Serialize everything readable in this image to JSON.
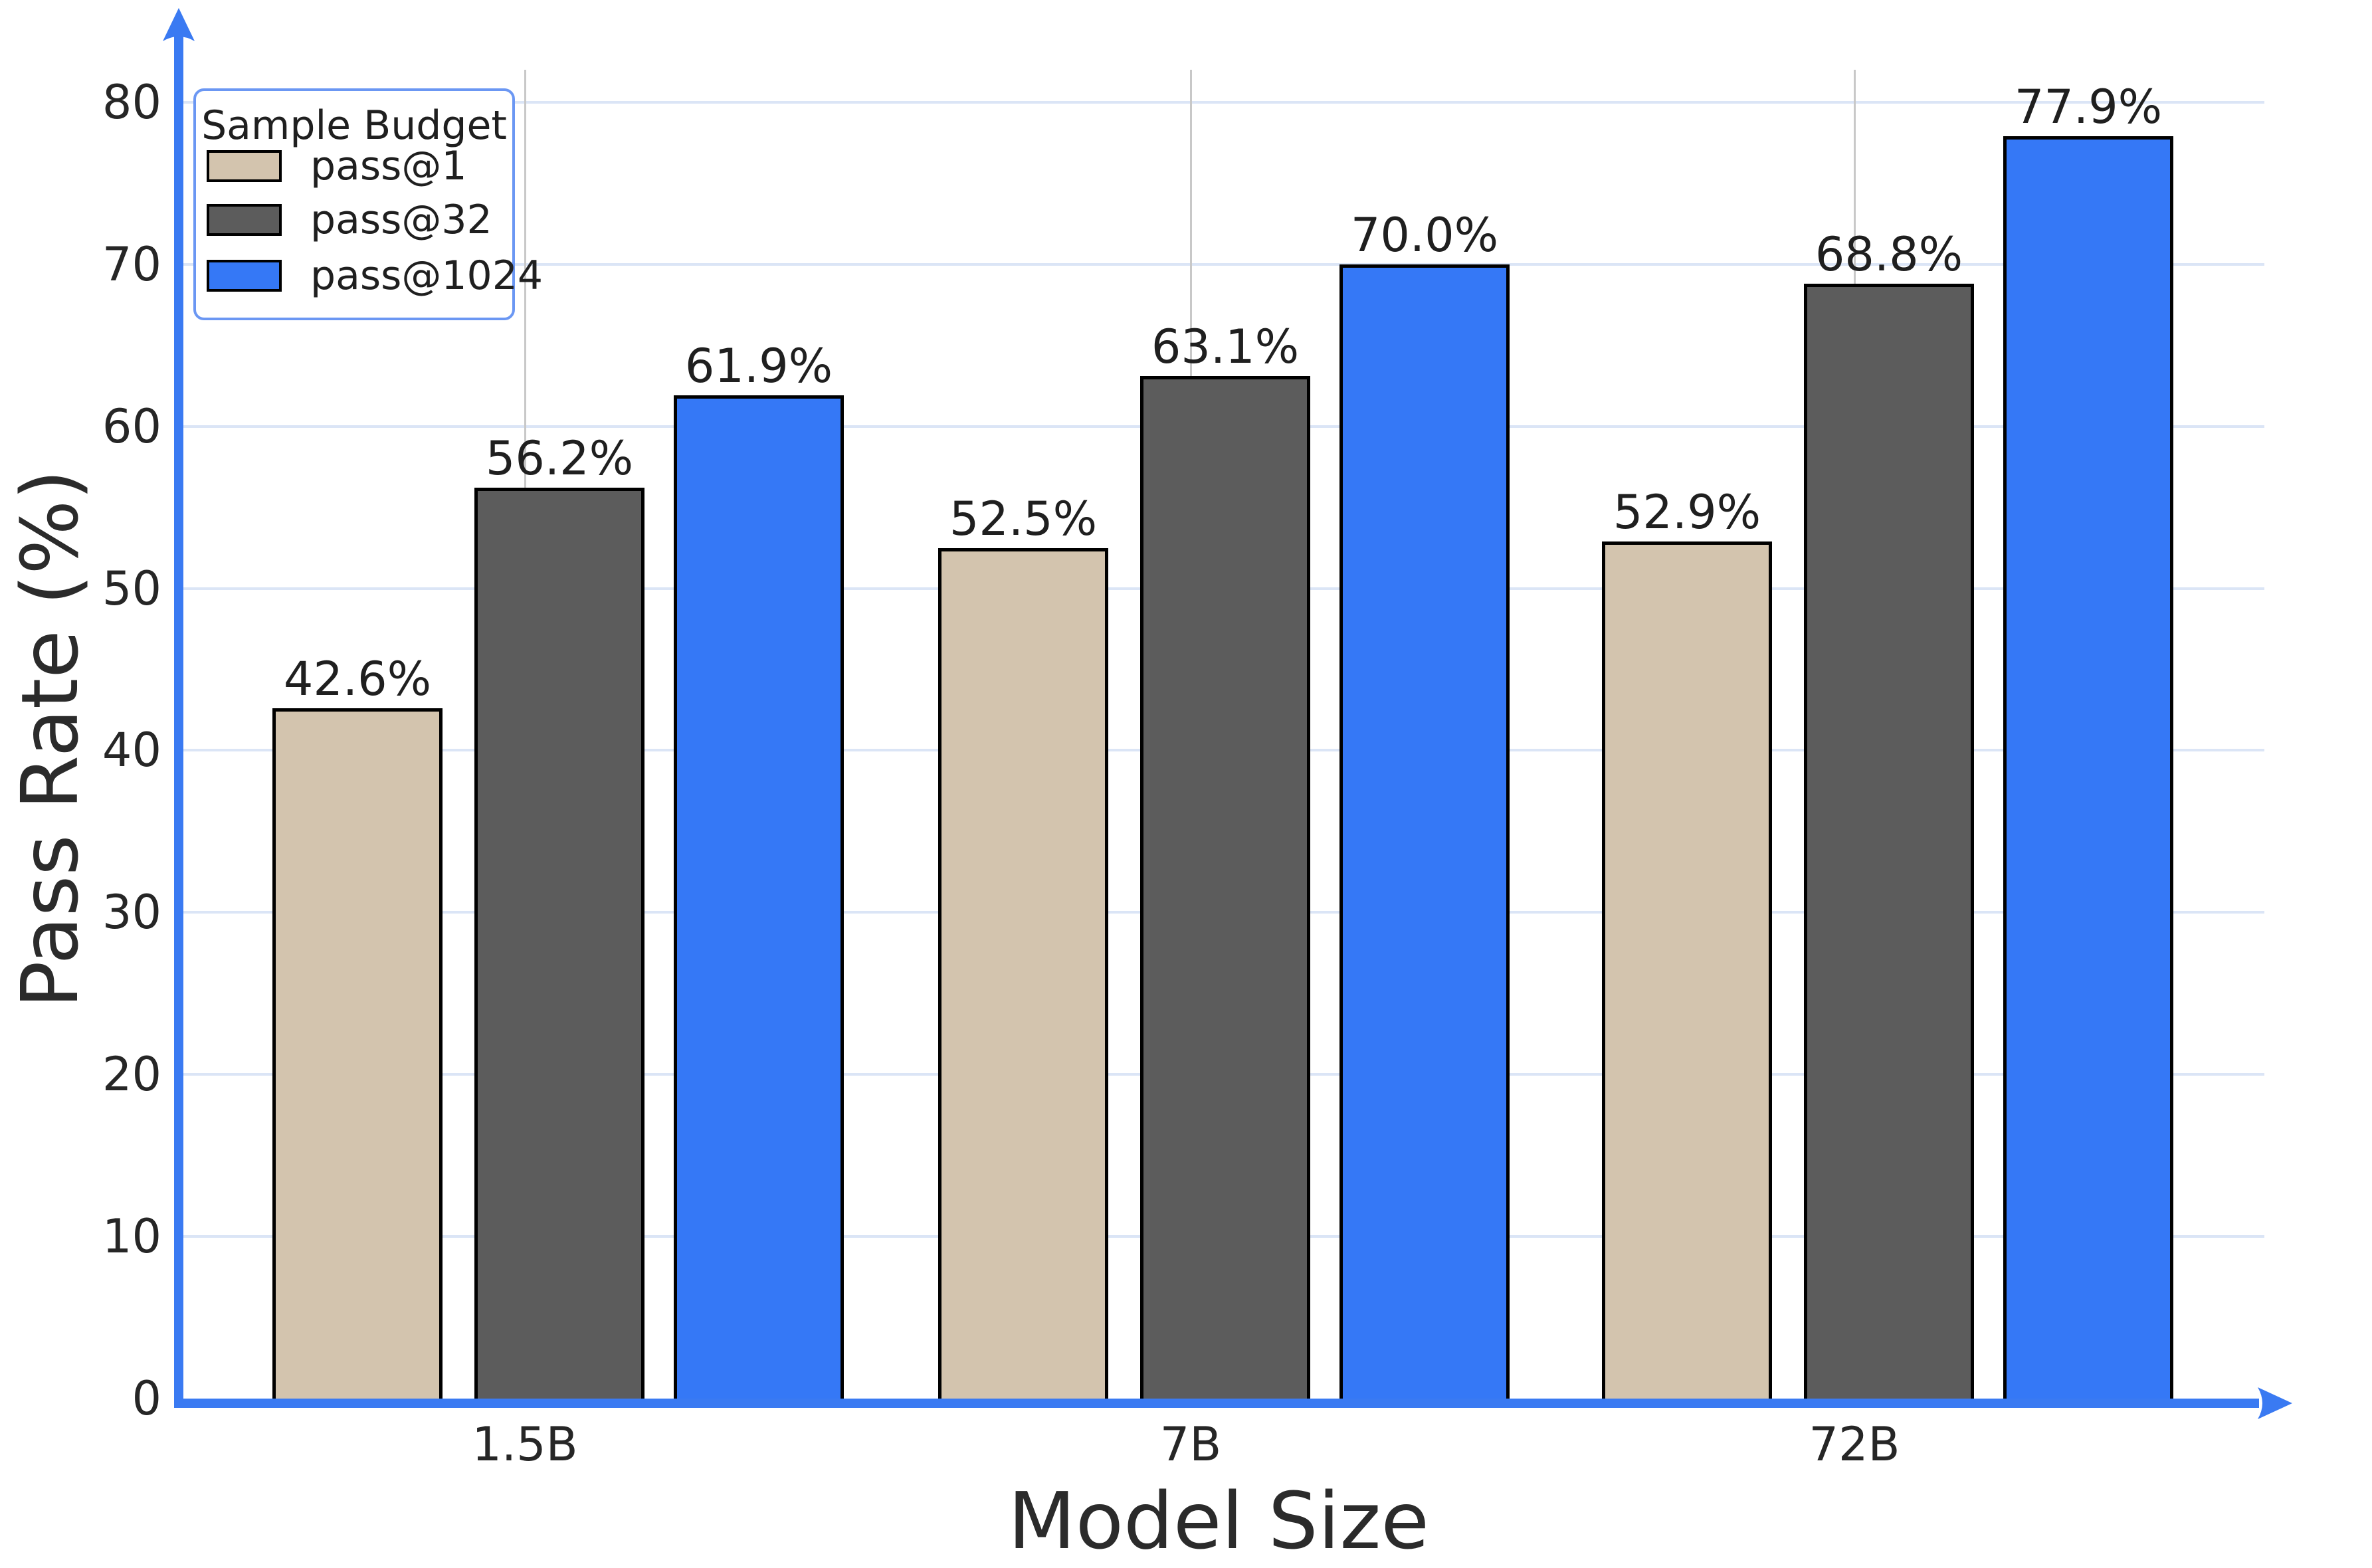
{
  "chart_data": {
    "type": "bar",
    "title": "",
    "xlabel": "Model Size",
    "ylabel": "Pass Rate (%)",
    "categories": [
      "1.5B",
      "7B",
      "72B"
    ],
    "series": [
      {
        "name": "pass@1",
        "color": "#d3c4ae",
        "values": [
          42.6,
          52.5,
          52.9
        ],
        "labels": [
          "42.6%",
          "52.5%",
          "52.9%"
        ]
      },
      {
        "name": "pass@32",
        "color": "#5c5c5c",
        "values": [
          56.2,
          63.1,
          68.8
        ],
        "labels": [
          "56.2%",
          "63.1%",
          "68.8%"
        ]
      },
      {
        "name": "pass@1024",
        "color": "#3578f6",
        "values": [
          61.9,
          70.0,
          77.9
        ],
        "labels": [
          "61.9%",
          "70.0%",
          "77.9%"
        ]
      }
    ],
    "yticks": [
      0,
      10,
      20,
      30,
      40,
      50,
      60,
      70,
      80
    ],
    "ylim": [
      0,
      85
    ],
    "grid": {
      "horizontal": true,
      "vertical": true
    },
    "legend": {
      "title": "Sample Budget",
      "position": "upper left",
      "entries": [
        "pass@1",
        "pass@32",
        "pass@1024"
      ]
    }
  },
  "colors": {
    "axis": "#3a7af2",
    "legend_border": "#6b97f3",
    "grid_horizontal": "#dbe5f6",
    "grid_vertical": "#c8c8c8",
    "bar_border": "#000000",
    "tick_text": "#262626",
    "value_label_text": "#1f1f1f",
    "background": "#ffffff"
  }
}
